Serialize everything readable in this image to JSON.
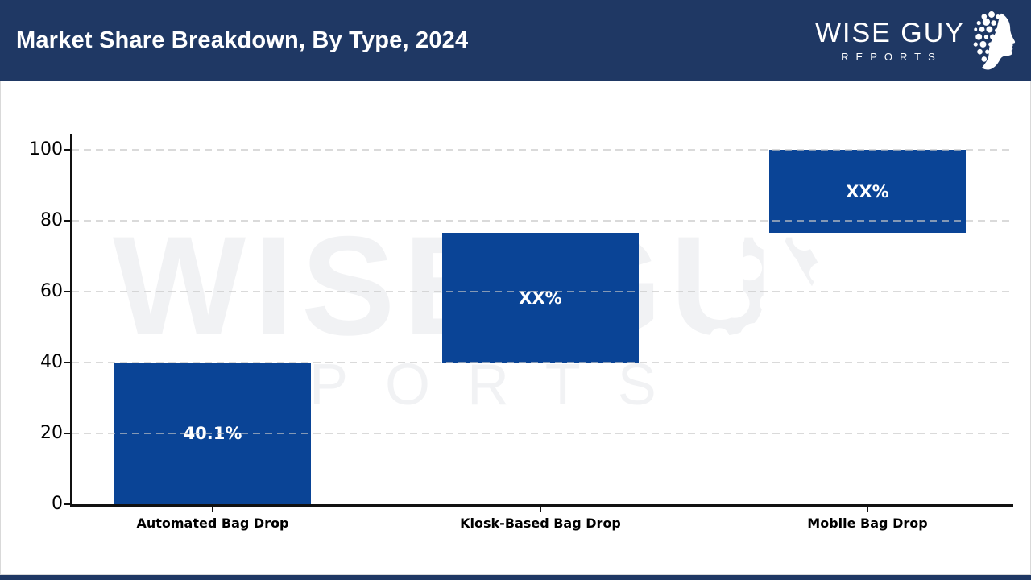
{
  "header": {
    "title": "Market Share Breakdown, By Type, 2024",
    "logo": {
      "line1": "WISE GUY",
      "line2": "REPORTS"
    },
    "bg_color": "#1f3864"
  },
  "watermark": {
    "line1": "WISE GUY",
    "line2": "REPORTS"
  },
  "chart_data": {
    "type": "bar",
    "variant": "waterfall",
    "title": "Market Share Breakdown, By Type, 2024",
    "categories": [
      "Automated Bag Drop",
      "Kiosk-Based Bag Drop",
      "Mobile Bag Drop"
    ],
    "series": [
      {
        "name": "Market Share (%)",
        "segments": [
          {
            "category": "Automated Bag Drop",
            "start": 0,
            "end": 40.1,
            "label": "40.1%"
          },
          {
            "category": "Kiosk-Based Bag Drop",
            "start": 40.0,
            "end": 76.5,
            "label": "XX%"
          },
          {
            "category": "Mobile Bag Drop",
            "start": 76.5,
            "end": 100.0,
            "label": "XX%"
          }
        ]
      }
    ],
    "y_ticks": [
      0,
      20,
      40,
      60,
      80,
      100
    ],
    "ylim": [
      0,
      105
    ],
    "xlabel": "",
    "ylabel": "",
    "grid": {
      "axis": "y",
      "style": "dashed",
      "color": "#d9d9d9",
      "above_bars": true
    },
    "bar_color": "#0a4496",
    "bar_label_color": "#ffffff",
    "legend": "none"
  }
}
